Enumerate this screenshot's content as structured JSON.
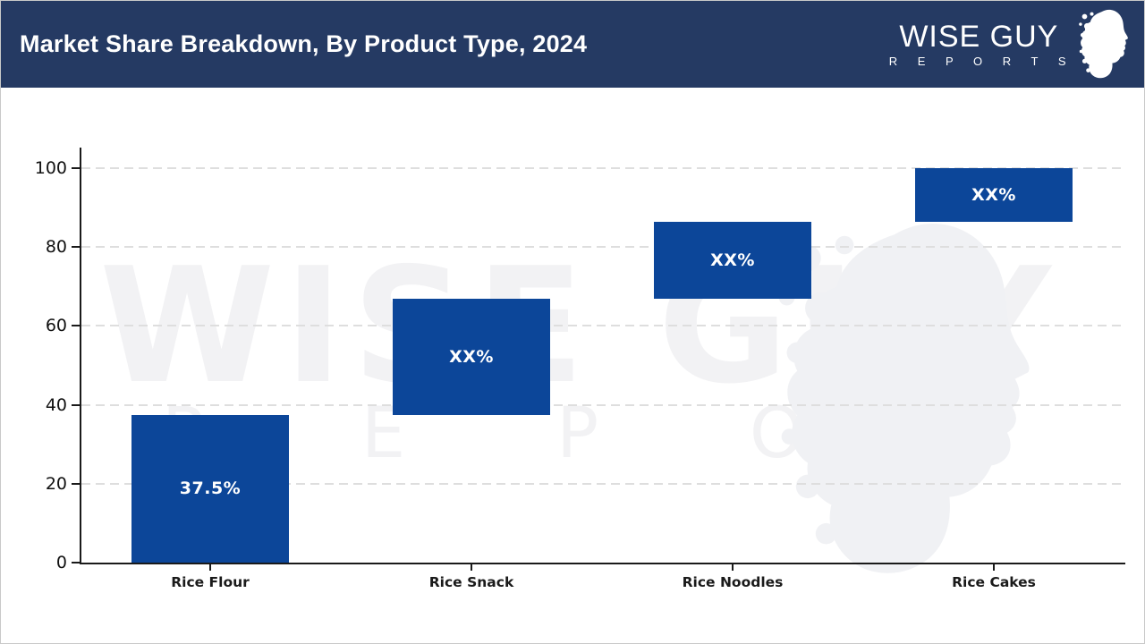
{
  "header": {
    "title": "Market Share Breakdown, By Product Type, 2024",
    "logo": {
      "wordmark": "WISE GUY",
      "subtext": "R E P O R T S"
    }
  },
  "watermark": {
    "wordmark": "WISE GUY",
    "subtext": "R E P O R T S"
  },
  "chart_data": {
    "type": "bar",
    "subtype": "waterfall",
    "categories": [
      "Rice Flour",
      "Rice Snack",
      "Rice Noodles",
      "Rice Cakes"
    ],
    "segments": [
      {
        "category": "Rice Flour",
        "start": 0,
        "end": 37.5,
        "label": "37.5%"
      },
      {
        "category": "Rice Snack",
        "start": 37.5,
        "end": 67,
        "label": "XX%"
      },
      {
        "category": "Rice Noodles",
        "start": 67,
        "end": 86.3,
        "label": "XX%"
      },
      {
        "category": "Rice Cakes",
        "start": 86.3,
        "end": 100,
        "label": "XX%"
      }
    ],
    "yticks": [
      0,
      20,
      40,
      60,
      80,
      100
    ],
    "ylim": [
      0,
      105
    ],
    "xlabel": "",
    "ylabel": "",
    "grid": "horizontal-dashed",
    "legend": "none",
    "bar_color": "#0c4699",
    "bar_label_color": "#ffffff"
  },
  "colors": {
    "header_bg": "#253a63",
    "bar": "#0c4699",
    "grid": "#dedede",
    "axis": "#1a1a1a",
    "watermark": "#f2f2f4"
  }
}
